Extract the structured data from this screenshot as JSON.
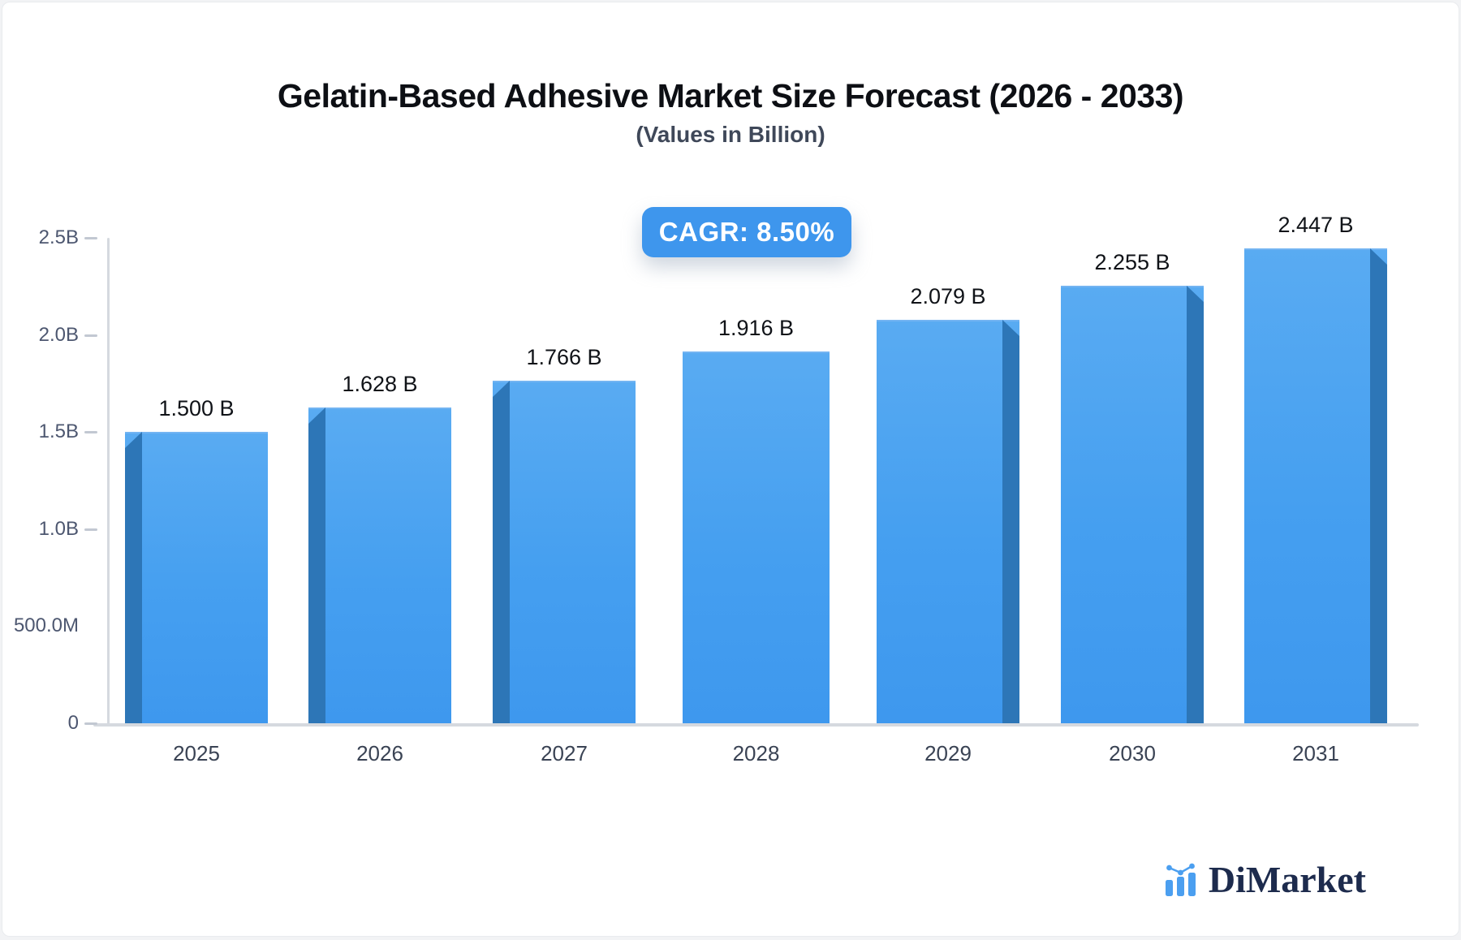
{
  "title": "Gelatin-Based Adhesive Market Size Forecast (2026 - 2033)",
  "subtitle": "(Values in Billion)",
  "cagr": {
    "label": "CAGR: 8.50%"
  },
  "brand": {
    "name": "DiMarket",
    "icon": "bar-line-chart-icon"
  },
  "colors": {
    "bar_front_top": "#59abf2",
    "bar_front_bottom": "#3e98ee",
    "bar_side": "#2d76b7",
    "badge_bg": "#3e96ed",
    "badge_text": "#ffffff",
    "axis": "#d5d9df",
    "tick": "#c2c8d2",
    "y_label": "#4d5770",
    "x_label": "#3a4354",
    "value_label": "#101318",
    "title_text": "#0d0f14",
    "brand_navy": "#1d2b4d",
    "brand_blue": "#4b9ff0"
  },
  "chart_data": {
    "type": "bar",
    "title": "Gelatin-Based Adhesive Market Size Forecast (2026 - 2033)",
    "subtitle": "(Values in Billion)",
    "annotation": "CAGR: 8.50%",
    "categories": [
      "2025",
      "2026",
      "2027",
      "2028",
      "2029",
      "2030",
      "2031"
    ],
    "values": [
      1.5,
      1.628,
      1.766,
      1.916,
      2.079,
      2.255,
      2.447
    ],
    "value_labels": [
      "1.500 B",
      "1.628 B",
      "1.766 B",
      "1.916 B",
      "2.079 B",
      "2.255 B",
      "2.447 B"
    ],
    "xlabel": "",
    "ylabel": "",
    "ylim": [
      0,
      2.5
    ],
    "y_ticks": [
      {
        "label": "2.5B",
        "value": 2.5,
        "dash": true
      },
      {
        "label": "2.0B",
        "value": 2.0,
        "dash": true
      },
      {
        "label": "1.5B",
        "value": 1.5,
        "dash": true
      },
      {
        "label": "1.0B",
        "value": 1.0,
        "dash": true
      },
      {
        "label": "500.0M",
        "value": 0.5,
        "dash": false
      },
      {
        "label": "0",
        "value": 0.0,
        "dash": true
      }
    ],
    "grid": false,
    "legend": false,
    "bar_style": "3d"
  }
}
